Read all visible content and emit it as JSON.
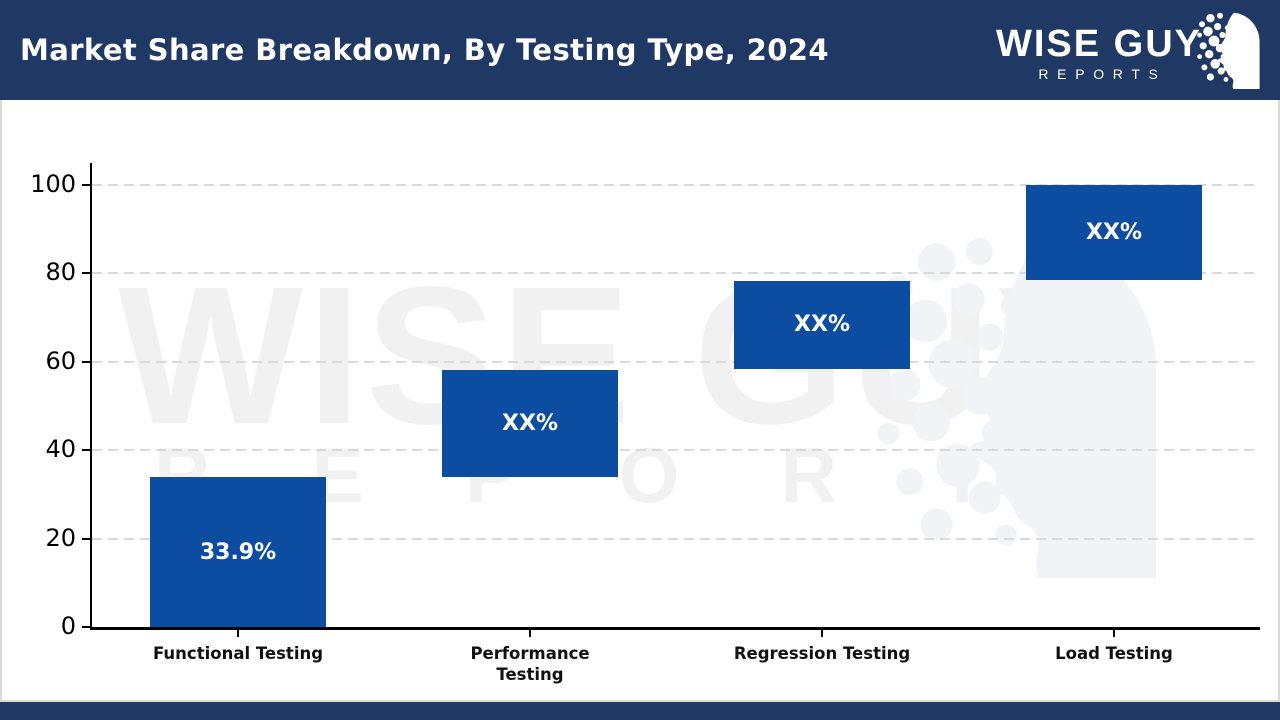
{
  "header": {
    "title": "Market Share Breakdown, By Testing Type, 2024",
    "logo": {
      "line1": "WISE GUY",
      "line2": "REPORTS"
    }
  },
  "watermark": {
    "line1": "WISE GUY",
    "line2": "REPORTS"
  },
  "chart_data": {
    "type": "bar",
    "subtype": "waterfall",
    "title": "Market Share Breakdown, By Testing Type, 2024",
    "xlabel": "",
    "ylabel": "",
    "ylim": [
      0,
      100
    ],
    "yticks": [
      0,
      20,
      40,
      60,
      80,
      100
    ],
    "grid": "horizontal-dashed",
    "legend": "none",
    "bar_color": "#0C4DA2",
    "categories": [
      "Functional Testing",
      "Performance Testing",
      "Regression Testing",
      "Load Testing"
    ],
    "category_label_lines": [
      [
        "Functional Testing"
      ],
      [
        "Performance",
        "Testing"
      ],
      [
        "Regression Testing"
      ],
      [
        "Load Testing"
      ]
    ],
    "segments": [
      {
        "category": "Functional Testing",
        "start": 0,
        "end": 33.9,
        "label": "33.9%"
      },
      {
        "category": "Performance Testing",
        "start": 33.9,
        "end": 58.1,
        "label": "XX%"
      },
      {
        "category": "Regression Testing",
        "start": 58.4,
        "end": 78.3,
        "label": "XX%"
      },
      {
        "category": "Load Testing",
        "start": 78.6,
        "end": 100,
        "label": "XX%"
      }
    ]
  },
  "colors": {
    "header_bg": "#1F3864",
    "footer_bg": "#1F3864",
    "bar": "#0C4DA2",
    "bar_label": "#FFFFFF",
    "gridline": "#D9D9D9",
    "axis": "#000000",
    "title_text": "#FFFFFF",
    "watermark": "#F1F1F1",
    "panel_bg": "#FFFFFF"
  }
}
